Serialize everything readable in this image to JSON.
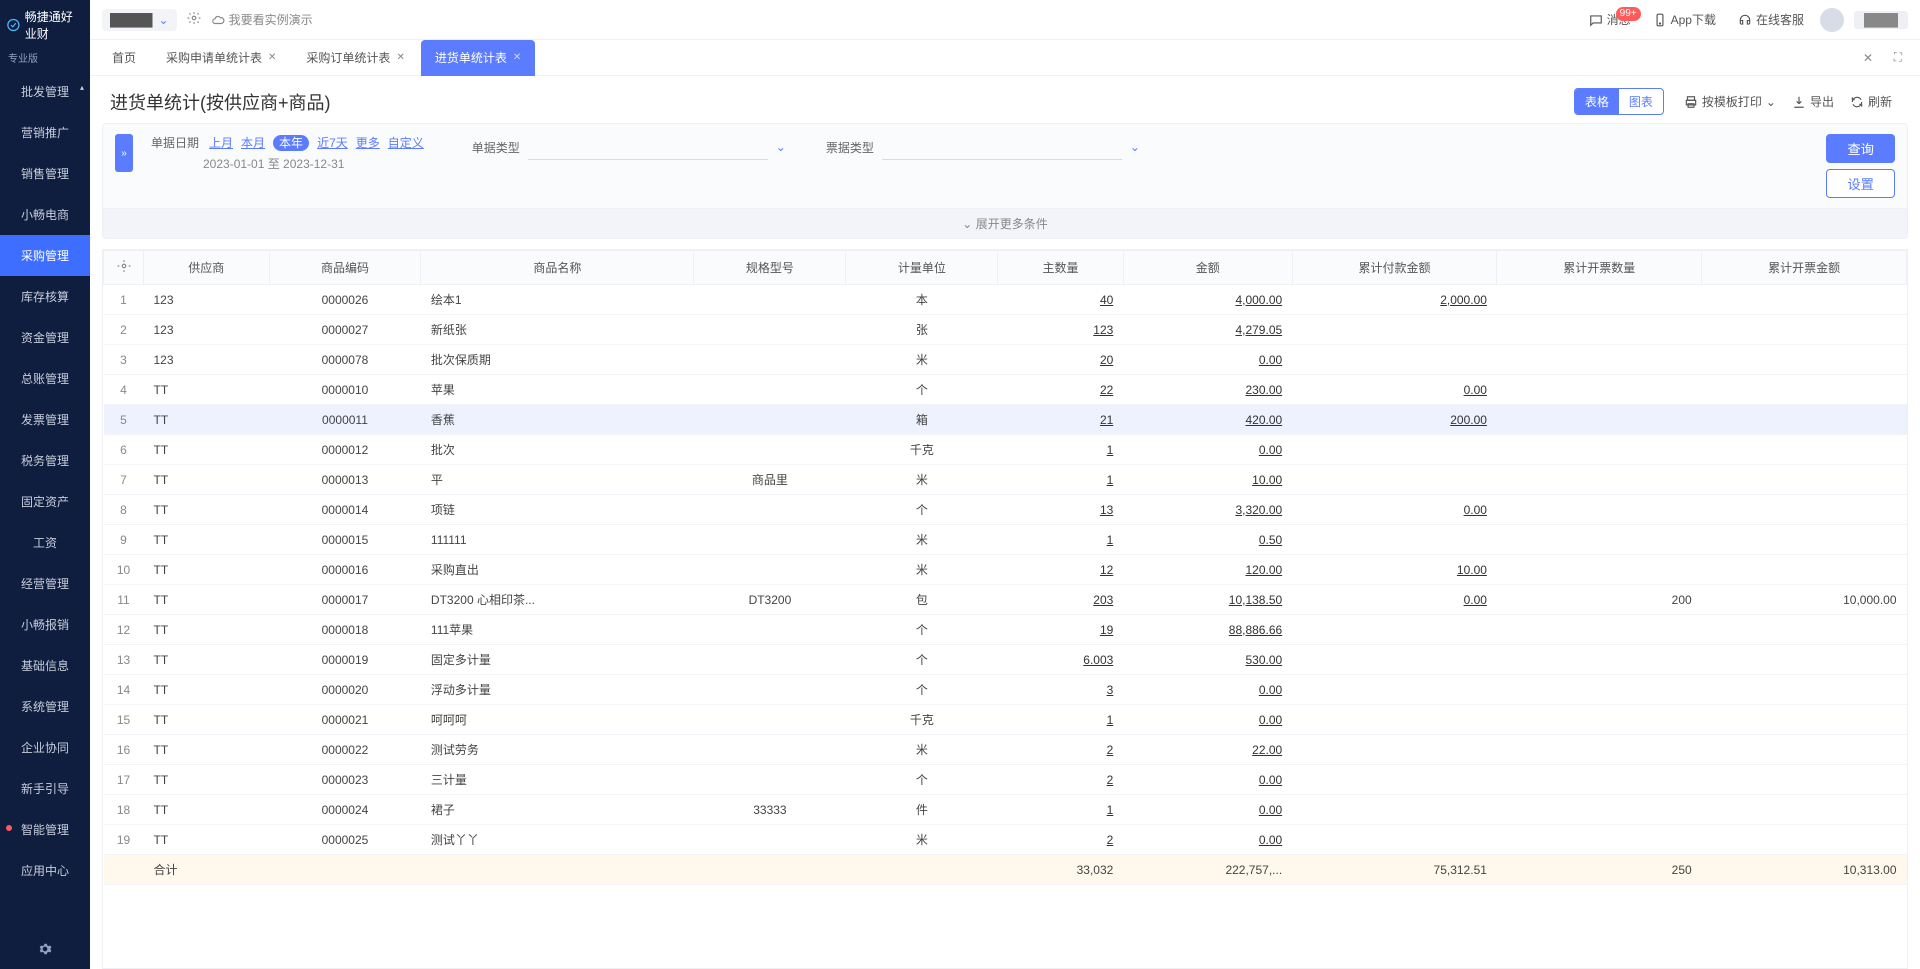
{
  "brand": {
    "name": "畅捷通好业财",
    "edition": "专业版"
  },
  "sidebar": {
    "items": [
      {
        "label": "批发管理",
        "exp": true
      },
      {
        "label": "营销推广"
      },
      {
        "label": "销售管理"
      },
      {
        "label": "小畅电商"
      },
      {
        "label": "采购管理",
        "active": true
      },
      {
        "label": "库存核算"
      },
      {
        "label": "资金管理"
      },
      {
        "label": "总账管理"
      },
      {
        "label": "发票管理"
      },
      {
        "label": "税务管理"
      },
      {
        "label": "固定资产"
      },
      {
        "label": "工资"
      },
      {
        "label": "经营管理"
      },
      {
        "label": "小畅报销"
      },
      {
        "label": "基础信息"
      },
      {
        "label": "系统管理"
      },
      {
        "label": "企业协同"
      },
      {
        "label": "新手引导"
      },
      {
        "label": "智能管理",
        "dot": true
      },
      {
        "label": "应用中心"
      }
    ]
  },
  "topbar": {
    "org": "█████",
    "demo": "我要看实例演示",
    "msg": "消息",
    "msg_badge": "99+",
    "download": "App下载",
    "service": "在线客服",
    "user": "████"
  },
  "tabs": {
    "items": [
      {
        "label": "首页",
        "closable": false
      },
      {
        "label": "采购申请单统计表",
        "closable": true
      },
      {
        "label": "采购订单统计表",
        "closable": true
      },
      {
        "label": "进货单统计表",
        "closable": true,
        "active": true
      }
    ]
  },
  "page": {
    "title": "进货单统计(按供应商+商品)",
    "view": {
      "table": "表格",
      "chart": "图表"
    },
    "actions": {
      "print": "按模板打印",
      "export": "导出",
      "refresh": "刷新"
    }
  },
  "filter": {
    "date_label": "单据日期",
    "opts": [
      "上月",
      "本月",
      "本年",
      "近7天",
      "更多",
      "自定义"
    ],
    "active_opt": "本年",
    "range": "2023-01-01 至 2023-12-31",
    "doc_type": "单据类型",
    "invoice_type": "票据类型",
    "query": "查询",
    "settings": "设置",
    "more": "展开更多条件"
  },
  "table": {
    "cols": [
      "供应商",
      "商品编码",
      "商品名称",
      "规格型号",
      "计量单位",
      "主数量",
      "金额",
      "累计付款金额",
      "累计开票数量",
      "累计开票金额"
    ],
    "rows": [
      {
        "i": 1,
        "sup": "123",
        "code": "0000026",
        "name": "绘本1",
        "spec": "",
        "unit": "本",
        "qty": "40",
        "amt": "4,000.00",
        "paid": "2,000.00",
        "invq": "",
        "inva": ""
      },
      {
        "i": 2,
        "sup": "123",
        "code": "0000027",
        "name": "新纸张",
        "spec": "",
        "unit": "张",
        "qty": "123",
        "amt": "4,279.05",
        "paid": "",
        "invq": "",
        "inva": ""
      },
      {
        "i": 3,
        "sup": "123",
        "code": "0000078",
        "name": "批次保质期",
        "spec": "",
        "unit": "米",
        "qty": "20",
        "amt": "0.00",
        "paid": "",
        "invq": "",
        "inva": ""
      },
      {
        "i": 4,
        "sup": "TT",
        "code": "0000010",
        "name": "苹果",
        "spec": "",
        "unit": "个",
        "qty": "22",
        "amt": "230.00",
        "paid": "0.00",
        "invq": "",
        "inva": ""
      },
      {
        "i": 5,
        "sup": "TT",
        "code": "0000011",
        "name": "香蕉",
        "spec": "",
        "unit": "箱",
        "qty": "21",
        "amt": "420.00",
        "paid": "200.00",
        "invq": "",
        "inva": "",
        "hl": true
      },
      {
        "i": 6,
        "sup": "TT",
        "code": "0000012",
        "name": "批次",
        "spec": "",
        "unit": "千克",
        "qty": "1",
        "amt": "0.00",
        "paid": "",
        "invq": "",
        "inva": ""
      },
      {
        "i": 7,
        "sup": "TT",
        "code": "0000013",
        "name": "平",
        "spec": "商品里",
        "unit": "米",
        "qty": "1",
        "amt": "10.00",
        "paid": "",
        "invq": "",
        "inva": ""
      },
      {
        "i": 8,
        "sup": "TT",
        "code": "0000014",
        "name": "项链",
        "spec": "",
        "unit": "个",
        "qty": "13",
        "amt": "3,320.00",
        "paid": "0.00",
        "invq": "",
        "inva": ""
      },
      {
        "i": 9,
        "sup": "TT",
        "code": "0000015",
        "name": "111111",
        "spec": "",
        "unit": "米",
        "qty": "1",
        "amt": "0.50",
        "paid": "",
        "invq": "",
        "inva": ""
      },
      {
        "i": 10,
        "sup": "TT",
        "code": "0000016",
        "name": "采购直出",
        "spec": "",
        "unit": "米",
        "qty": "12",
        "amt": "120.00",
        "paid": "10.00",
        "invq": "",
        "inva": ""
      },
      {
        "i": 11,
        "sup": "TT",
        "code": "0000017",
        "name": "DT3200 心相印茶...",
        "spec": "DT3200",
        "unit": "包",
        "qty": "203",
        "amt": "10,138.50",
        "paid": "0.00",
        "invq": "200",
        "inva": "10,000.00"
      },
      {
        "i": 12,
        "sup": "TT",
        "code": "0000018",
        "name": "111苹果",
        "spec": "",
        "unit": "个",
        "qty": "19",
        "amt": "88,886.66",
        "paid": "",
        "invq": "",
        "inva": ""
      },
      {
        "i": 13,
        "sup": "TT",
        "code": "0000019",
        "name": "固定多计量",
        "spec": "",
        "unit": "个",
        "qty": "6.003",
        "amt": "530.00",
        "paid": "",
        "invq": "",
        "inva": ""
      },
      {
        "i": 14,
        "sup": "TT",
        "code": "0000020",
        "name": "浮动多计量",
        "spec": "",
        "unit": "个",
        "qty": "3",
        "amt": "0.00",
        "paid": "",
        "invq": "",
        "inva": ""
      },
      {
        "i": 15,
        "sup": "TT",
        "code": "0000021",
        "name": "呵呵呵",
        "spec": "",
        "unit": "千克",
        "qty": "1",
        "amt": "0.00",
        "paid": "",
        "invq": "",
        "inva": ""
      },
      {
        "i": 16,
        "sup": "TT",
        "code": "0000022",
        "name": "测试劳务",
        "spec": "",
        "unit": "米",
        "qty": "2",
        "amt": "22.00",
        "paid": "",
        "invq": "",
        "inva": ""
      },
      {
        "i": 17,
        "sup": "TT",
        "code": "0000023",
        "name": "三计量",
        "spec": "",
        "unit": "个",
        "qty": "2",
        "amt": "0.00",
        "paid": "",
        "invq": "",
        "inva": ""
      },
      {
        "i": 18,
        "sup": "TT",
        "code": "0000024",
        "name": "裙子",
        "spec": "33333",
        "unit": "件",
        "qty": "1",
        "amt": "0.00",
        "paid": "",
        "invq": "",
        "inva": ""
      },
      {
        "i": 19,
        "sup": "TT",
        "code": "0000025",
        "name": "测试丫丫",
        "spec": "",
        "unit": "米",
        "qty": "2",
        "amt": "0.00",
        "paid": "",
        "invq": "",
        "inva": ""
      }
    ],
    "total": {
      "label": "合计",
      "qty": "33,032",
      "amt": "222,757,...",
      "paid": "75,312.51",
      "invq": "250",
      "inva": "10,313.00"
    }
  }
}
